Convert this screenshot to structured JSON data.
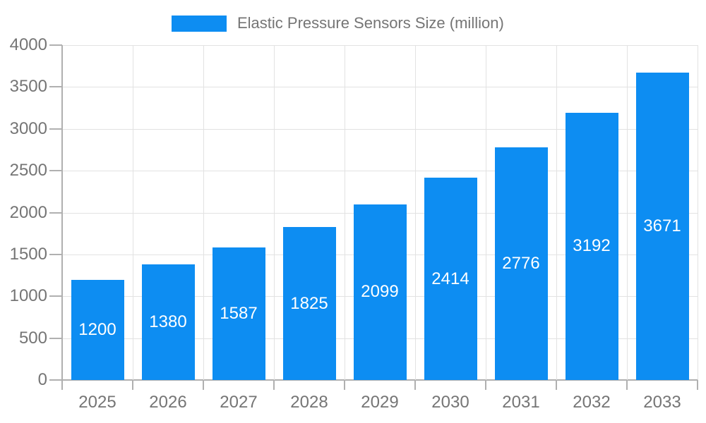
{
  "legend": {
    "label": "Elastic Pressure Sensors Size (million)"
  },
  "chart_data": {
    "type": "bar",
    "title": "Elastic Pressure Sensors Size (million)",
    "categories": [
      "2025",
      "2026",
      "2027",
      "2028",
      "2029",
      "2030",
      "2031",
      "2032",
      "2033"
    ],
    "series": [
      {
        "name": "Elastic Pressure Sensors Size (million)",
        "values": [
          1200,
          1380,
          1587,
          1825,
          2099,
          2414,
          2776,
          3192,
          3671
        ]
      }
    ],
    "bar_labels": [
      1200,
      1380,
      1587,
      1825,
      2099,
      2414,
      2776,
      3192,
      3671
    ],
    "xlabel": "",
    "ylabel": "",
    "ylim": [
      0,
      4000
    ],
    "ytick_step": 500,
    "yticks": [
      0,
      500,
      1000,
      1500,
      2000,
      2500,
      3000,
      3500,
      4000
    ],
    "grid": true,
    "legend_position": "top-center",
    "colors": {
      "bar": "#0d8df2",
      "bar_label": "#ffffff",
      "grid": "#e2e2e2",
      "axis": "#b0b0b0",
      "text": "#757575"
    }
  }
}
